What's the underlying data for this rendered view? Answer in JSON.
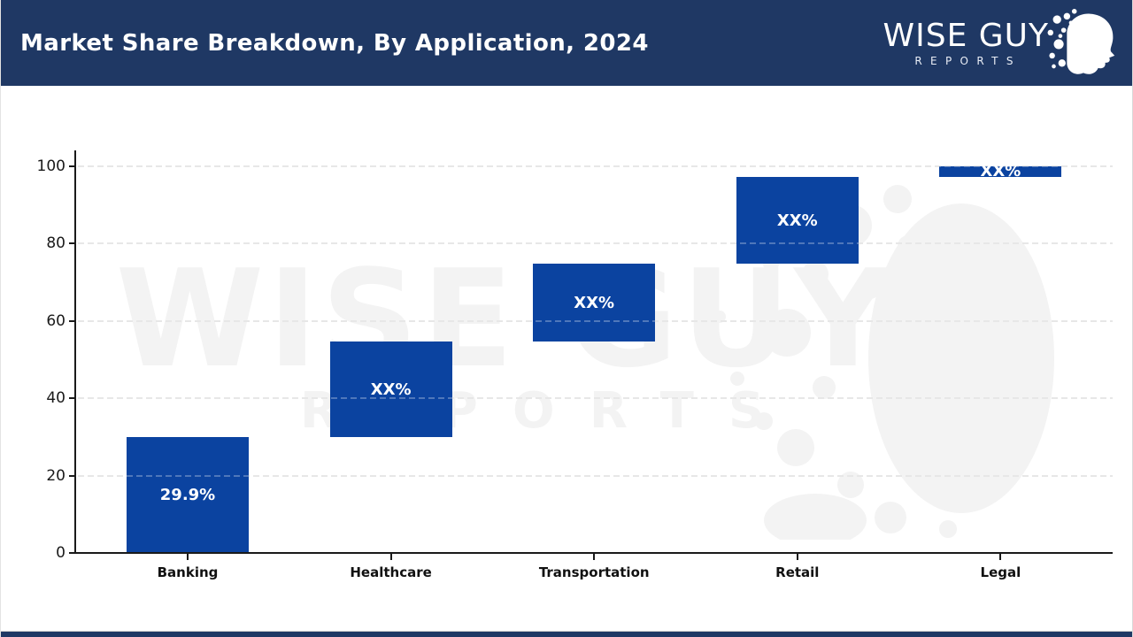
{
  "header": {
    "title": "Market Share Breakdown, By Application, 2024",
    "brand": {
      "name": "WISE GUY",
      "sub": "REPORTS"
    }
  },
  "watermark": {
    "line1": "WISE GUY",
    "line2": "REPORTS"
  },
  "colors": {
    "header_bg": "#1f3864",
    "bar": "#0b43a0",
    "bar_label": "#ffffff",
    "grid": "#dedede",
    "axis": "#1a1a1a",
    "watermark": "#f3f3f3"
  },
  "chart_data": {
    "type": "bar",
    "subtype": "waterfall-stacked-breakdown",
    "title": "Market Share Breakdown, By Application, 2024",
    "categories": [
      "Banking",
      "Healthcare",
      "Transportation",
      "Retail",
      "Legal"
    ],
    "segments": [
      {
        "category": "Banking",
        "start": 0,
        "end": 29.9,
        "value": 29.9,
        "label": "29.9%"
      },
      {
        "category": "Healthcare",
        "start": 29.9,
        "end": 54.6,
        "value": 24.7,
        "label": "XX%"
      },
      {
        "category": "Transportation",
        "start": 54.6,
        "end": 74.7,
        "value": 20.1,
        "label": "XX%"
      },
      {
        "category": "Retail",
        "start": 74.7,
        "end": 97.1,
        "value": 22.4,
        "label": "XX%"
      },
      {
        "category": "Legal",
        "start": 97.1,
        "end": 100,
        "value": 2.9,
        "label": "XX%"
      }
    ],
    "yticks": [
      0,
      20,
      40,
      60,
      80,
      100
    ],
    "ylim": [
      0,
      104
    ],
    "xlabel": "",
    "ylabel": "",
    "grid": "horizontal-dashed",
    "legend": "none"
  }
}
